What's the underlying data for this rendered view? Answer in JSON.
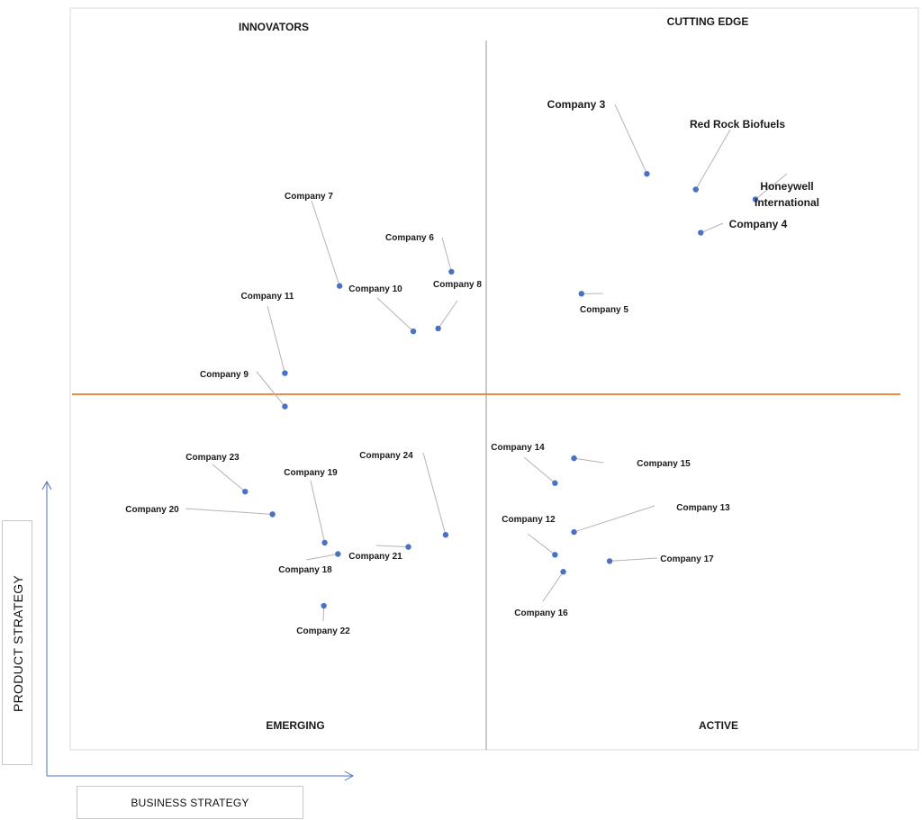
{
  "chart_data": {
    "type": "scatter",
    "xlabel": "BUSINESS STRATEGY",
    "ylabel": "PRODUCT STRATEGY",
    "xlim": [
      0,
      100
    ],
    "ylim": [
      0,
      100
    ],
    "grid": false,
    "quadrants": {
      "top_left": "INNOVATORS",
      "top_right": "CUTTING EDGE",
      "bottom_left": "EMERGING",
      "bottom_right": "ACTIVE"
    },
    "colors": {
      "point": "#4a72c4",
      "divider_h": "#f07a30",
      "divider_v": "#a6a6a6",
      "leader": "#b4b4b4"
    },
    "points": [
      {
        "name": "Company 3",
        "x": 69.4,
        "y": 81.2,
        "bold": true
      },
      {
        "name": "Red Rock Biofuels",
        "x": 75.3,
        "y": 79.0,
        "bold": true
      },
      {
        "name": "Honeywell International",
        "x": 82.5,
        "y": 77.6,
        "bold": true
      },
      {
        "name": "Company 4",
        "x": 75.9,
        "y": 72.9,
        "bold": true
      },
      {
        "name": "Company 5",
        "x": 61.5,
        "y": 64.3,
        "bold": false
      },
      {
        "name": "Company 6",
        "x": 45.8,
        "y": 67.4,
        "bold": false
      },
      {
        "name": "Company 7",
        "x": 32.3,
        "y": 65.4,
        "bold": false
      },
      {
        "name": "Company 8",
        "x": 44.2,
        "y": 59.4,
        "bold": false
      },
      {
        "name": "Company 10",
        "x": 41.2,
        "y": 59.0,
        "bold": false
      },
      {
        "name": "Company 11",
        "x": 25.7,
        "y": 53.1,
        "bold": false
      },
      {
        "name": "Company 9",
        "x": 25.7,
        "y": 48.4,
        "bold": false
      },
      {
        "name": "Company 15",
        "x": 60.6,
        "y": 41.1,
        "bold": false
      },
      {
        "name": "Company 14",
        "x": 58.3,
        "y": 37.6,
        "bold": false
      },
      {
        "name": "Company 23",
        "x": 20.9,
        "y": 36.4,
        "bold": false
      },
      {
        "name": "Company 20",
        "x": 24.2,
        "y": 33.2,
        "bold": false
      },
      {
        "name": "Company 13",
        "x": 60.6,
        "y": 30.7,
        "bold": false
      },
      {
        "name": "Company 24",
        "x": 45.1,
        "y": 30.3,
        "bold": false
      },
      {
        "name": "Company 19",
        "x": 30.5,
        "y": 29.2,
        "bold": false
      },
      {
        "name": "Company 21",
        "x": 40.6,
        "y": 28.6,
        "bold": false
      },
      {
        "name": "Company 12",
        "x": 58.3,
        "y": 27.5,
        "bold": false
      },
      {
        "name": "Company 18",
        "x": 32.1,
        "y": 27.6,
        "bold": false
      },
      {
        "name": "Company 17",
        "x": 64.9,
        "y": 26.6,
        "bold": false
      },
      {
        "name": "Company 16",
        "x": 59.3,
        "y": 25.1,
        "bold": false
      },
      {
        "name": "Company 22",
        "x": 30.4,
        "y": 20.3,
        "bold": false
      }
    ]
  }
}
